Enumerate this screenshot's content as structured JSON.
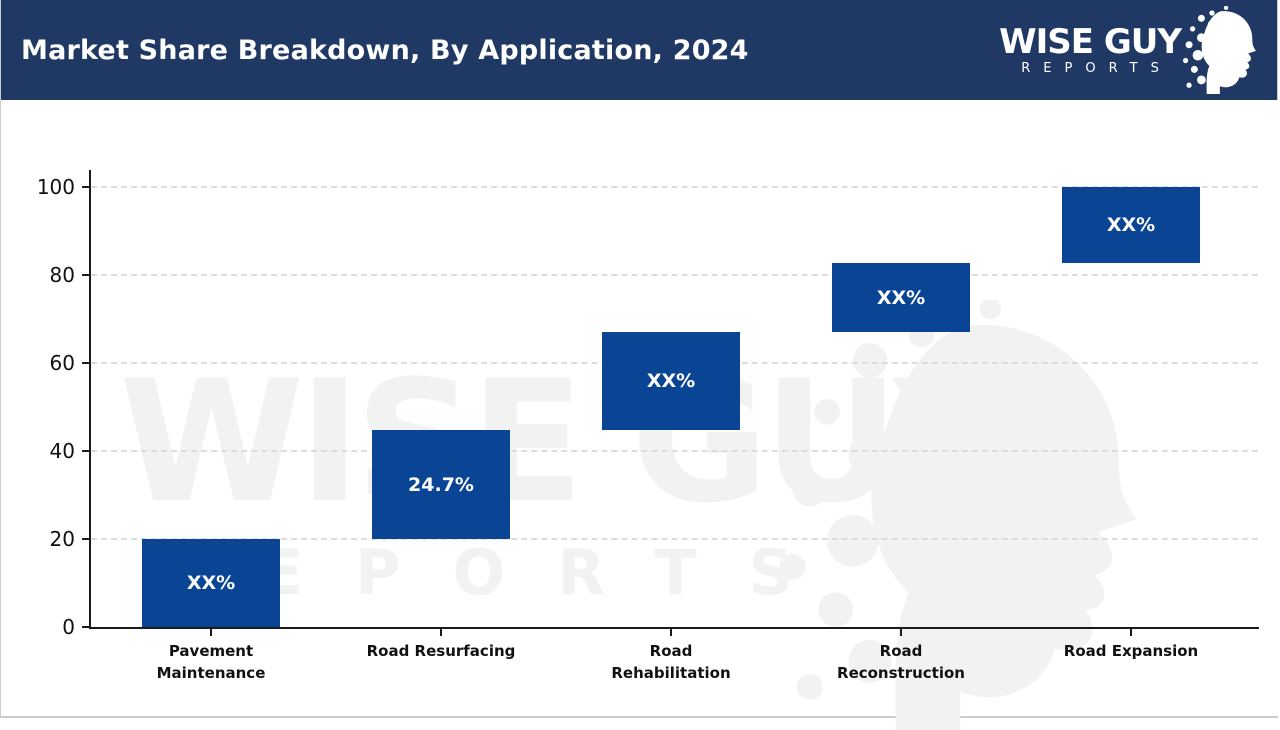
{
  "header": {
    "title": "Market Share Breakdown, By Application, 2024",
    "logo": {
      "line1": "WISE GUY",
      "line2": "REPORTS"
    }
  },
  "watermark": {
    "line1": "WISE GUY",
    "line2": "REPORTS"
  },
  "colors": {
    "header_bg": "#203864",
    "bar": "#0A4595",
    "bar_label": "#ffffff",
    "grid": "#dcdcdc",
    "axis": "#1a1a1a",
    "tick_text": "#111111",
    "watermark": "#f2f2f2",
    "title_text": "#ffffff"
  },
  "chart_data": {
    "type": "bar",
    "subtype": "waterfall",
    "title": "Market Share Breakdown, By Application, 2024",
    "xlabel": "",
    "ylabel": "",
    "ylim": [
      0,
      104
    ],
    "yticks": [
      0,
      20,
      40,
      60,
      80,
      100
    ],
    "grid": "horizontal-dashed",
    "legend": "none",
    "categories": [
      "Pavement Maintenance",
      "Road Resurfacing",
      "Road Rehabilitation",
      "Road Reconstruction",
      "Road Expansion"
    ],
    "category_lines": [
      [
        "Pavement",
        "Maintenance"
      ],
      [
        "Road Resurfacing"
      ],
      [
        "Road",
        "Rehabilitation"
      ],
      [
        "Road",
        "Reconstruction"
      ],
      [
        "Road Expansion"
      ]
    ],
    "segments": [
      {
        "category": "Pavement Maintenance",
        "start": 0,
        "end": 20,
        "increment": 20,
        "label": "XX%"
      },
      {
        "category": "Road Resurfacing",
        "start": 20,
        "end": 44.7,
        "increment": 24.7,
        "label": "24.7%"
      },
      {
        "category": "Road Rehabilitation",
        "start": 44.7,
        "end": 67,
        "increment": 22.3,
        "label": "XX%"
      },
      {
        "category": "Road Reconstruction",
        "start": 67,
        "end": 82.7,
        "increment": 15.7,
        "label": "XX%"
      },
      {
        "category": "Road Expansion",
        "start": 82.7,
        "end": 100,
        "increment": 17.3,
        "label": "XX%"
      }
    ]
  }
}
